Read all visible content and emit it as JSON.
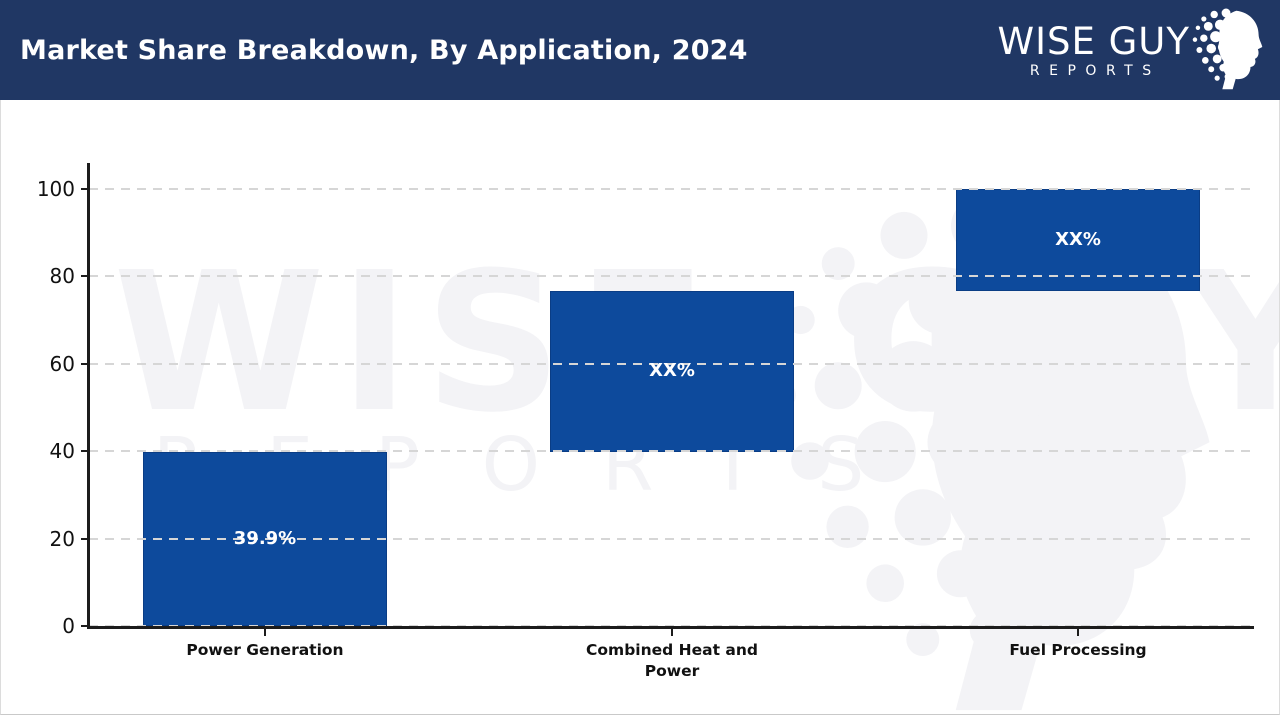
{
  "header": {
    "title": "Market Share Breakdown, By Application, 2024",
    "logo": {
      "line1": "WISE GUY",
      "line2": "REPORTS"
    }
  },
  "watermark": {
    "line1": "WISE GUY",
    "line2": "REPORTS"
  },
  "chart_data": {
    "type": "bar",
    "subtype": "floating-segment-waterfall",
    "title": "Market Share Breakdown, By Application, 2024",
    "categories": [
      "Power Generation",
      "Combined Heat and\nPower",
      "Fuel Processing"
    ],
    "segments": [
      {
        "category": "Power Generation",
        "start": 0,
        "end": 39.9,
        "label": "39.9%",
        "approx_share": 39.9
      },
      {
        "category": "Combined Heat and Power",
        "start": 39.9,
        "end": 76.7,
        "label": "XX%",
        "approx_share": 36.8
      },
      {
        "category": "Fuel Processing",
        "start": 76.7,
        "end": 100,
        "label": "XX%",
        "approx_share": 23.3
      }
    ],
    "ylim": [
      0,
      100
    ],
    "y_ticks": [
      0,
      20,
      40,
      60,
      80,
      100
    ],
    "grid": "horizontal-dashed",
    "legend": "none",
    "xlabel": "",
    "ylabel": ""
  },
  "colors": {
    "header_bg": "#203764",
    "header_text": "#ffffff",
    "bar": "#0d4a9c",
    "bar_edge": "#0a3d85",
    "bar_label": "#ffffff",
    "grid": "#d6d6d6",
    "axis": "#1c1c1c",
    "tick_text": "#111111",
    "watermark": "#f3f3f6"
  }
}
